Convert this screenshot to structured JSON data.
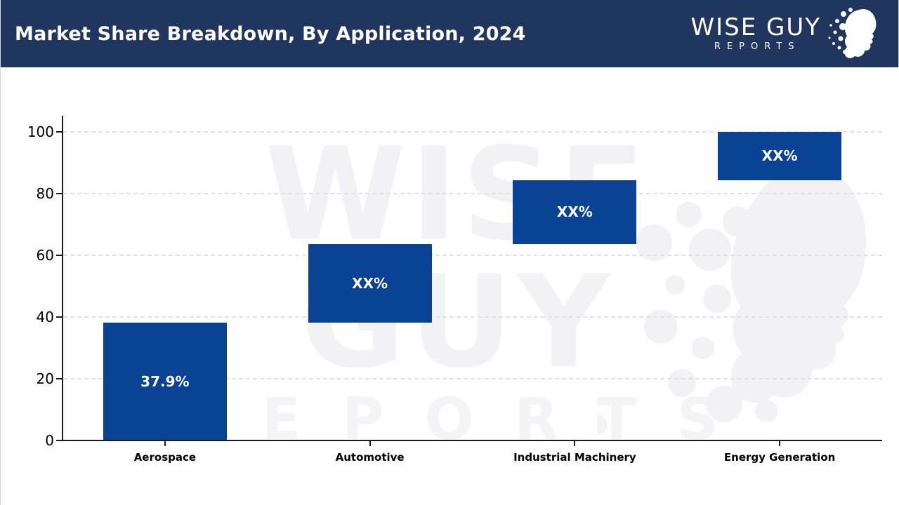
{
  "header": {
    "title": "Market Share Breakdown, By Application, 2024",
    "logo": {
      "line1": "WISE GUY",
      "line2": "REPORTS"
    }
  },
  "watermark": {
    "line1": "WISE GUY",
    "line2": "REPORTS"
  },
  "colors": {
    "header_bg": "#21365f",
    "bar": "#0a4296",
    "grid": "#e2e2e2",
    "axis": "#1a1a1a",
    "bar_label": "#ffffff",
    "watermark": "#f2f2f4"
  },
  "chart_data": {
    "type": "bar",
    "subtype": "waterfall-stacked",
    "title": "Market Share Breakdown, By Application, 2024",
    "xlabel": "",
    "ylabel": "",
    "categories": [
      "Aerospace",
      "Automotive",
      "Industrial Machinery",
      "Energy Generation"
    ],
    "segments": [
      {
        "category": "Aerospace",
        "start": 0,
        "end": 37.9,
        "label": "37.9%"
      },
      {
        "category": "Automotive",
        "start": 37.9,
        "end": 63.4,
        "label": "XX%"
      },
      {
        "category": "Industrial Machinery",
        "start": 63.4,
        "end": 84.1,
        "label": "XX%"
      },
      {
        "category": "Energy Generation",
        "start": 84.1,
        "end": 99.8,
        "label": "XX%"
      }
    ],
    "yticks": [
      0,
      20,
      40,
      60,
      80,
      100
    ],
    "ylim": [
      0,
      105
    ],
    "grid": "dashed-horizontal",
    "legend": "none"
  }
}
